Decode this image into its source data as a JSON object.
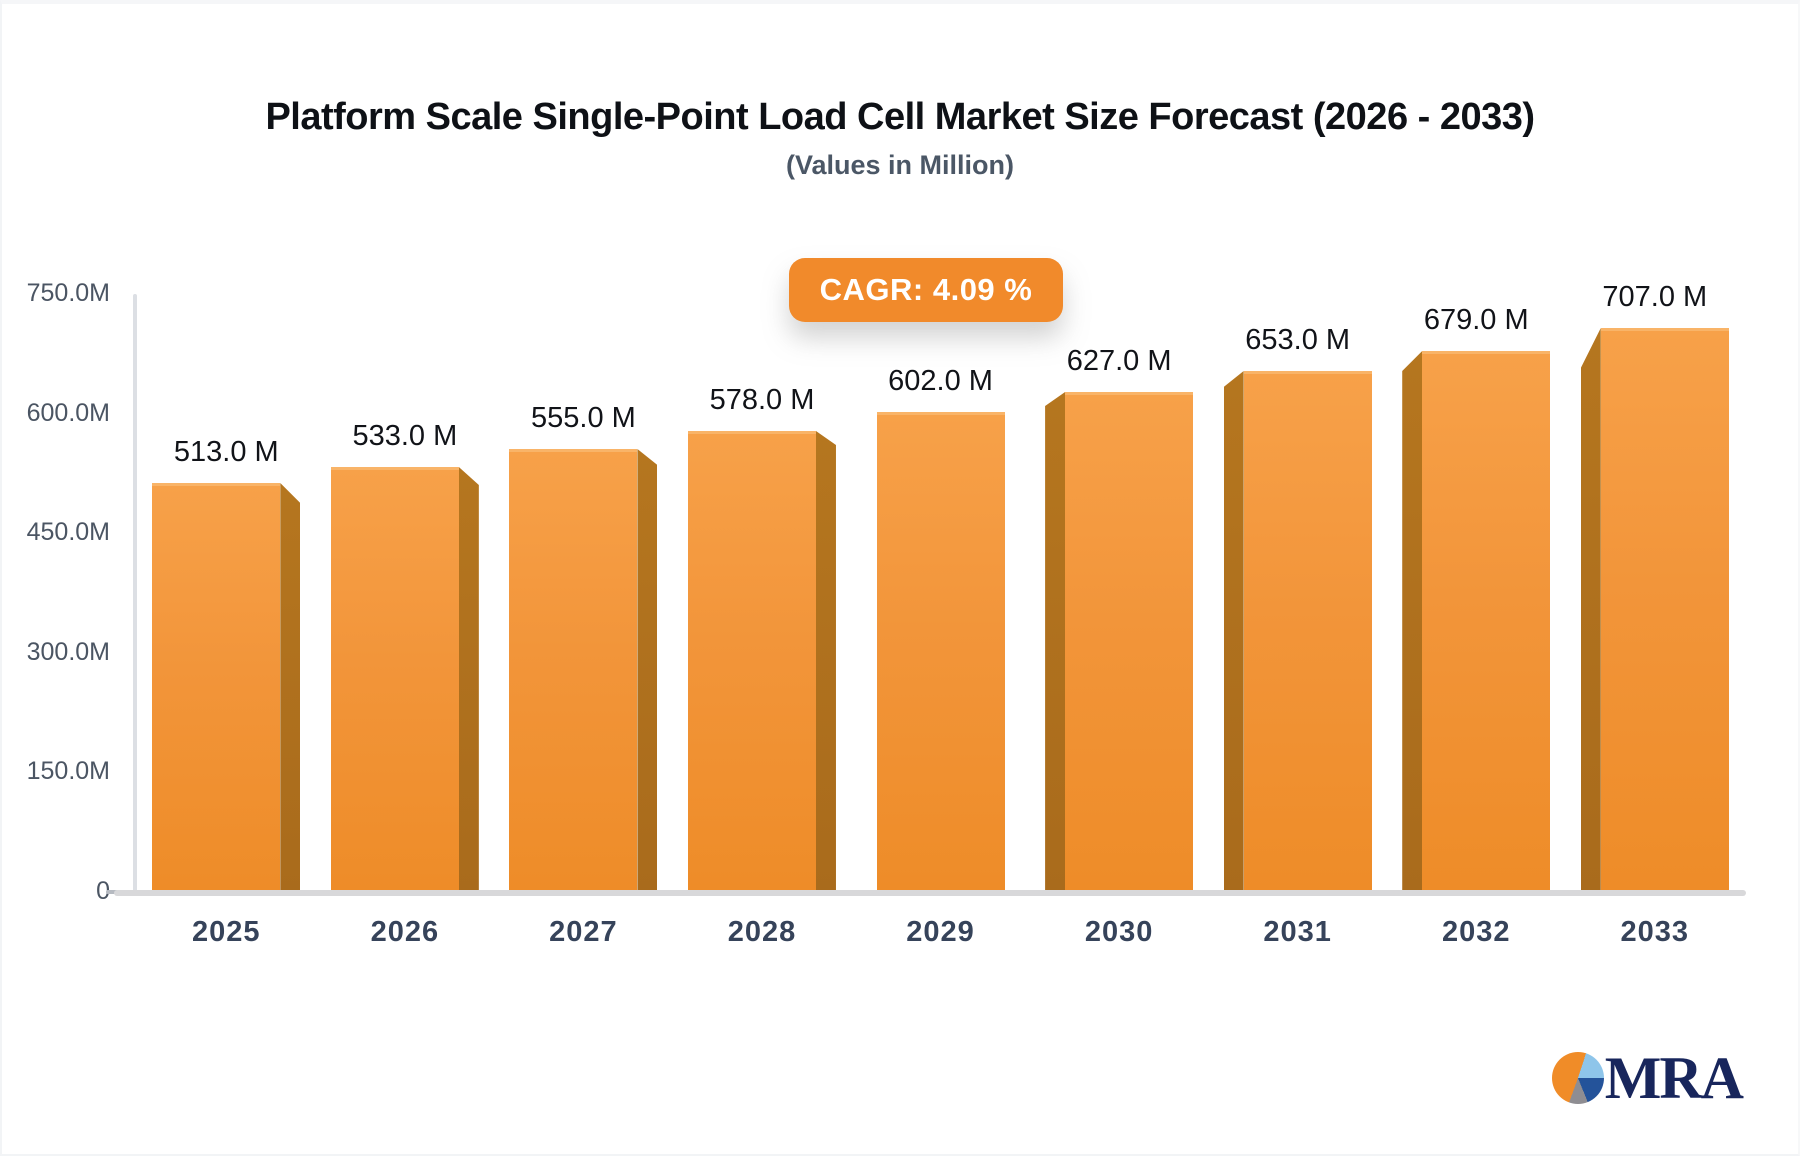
{
  "page": {
    "title": "Platform Scale Single-Point Load Cell Market Size Forecast (2026 - 2033)",
    "subtitle": "(Values in Million)"
  },
  "cagr_badge": {
    "label": "CAGR: 4.09 %"
  },
  "chart_data": {
    "type": "bar",
    "title": "Platform Scale Single-Point Load Cell Market Size Forecast (2026 - 2033)",
    "subtitle": "(Values in Million)",
    "categories": [
      "2025",
      "2026",
      "2027",
      "2028",
      "2029",
      "2030",
      "2031",
      "2032",
      "2033"
    ],
    "values": [
      513,
      533,
      555,
      578,
      602,
      627,
      653,
      679,
      707
    ],
    "bar_labels": [
      "513.0 M",
      "533.0 M",
      "555.0 M",
      "578.0 M",
      "602.0 M",
      "627.0 M",
      "653.0 M",
      "679.0 M",
      "707.0 M"
    ],
    "unit": "Million",
    "ylim": [
      0,
      750
    ],
    "y_ticks": [
      {
        "label": "750.0M",
        "value": 750
      },
      {
        "label": "600.0M",
        "value": 600
      },
      {
        "label": "450.0M",
        "value": 450
      },
      {
        "label": "300.0M",
        "value": 300
      },
      {
        "label": "150.0M",
        "value": 150
      },
      {
        "label": "0",
        "value": 0
      }
    ],
    "grid": false,
    "legend": false,
    "annotation": "CAGR: 4.09 %",
    "bar_color": "#f2953a",
    "bar_side_color": "#b5761f"
  },
  "logo": {
    "text": "MRA"
  },
  "colors": {
    "accent_orange": "#f18a2b",
    "axis_gray": "#d8d8da",
    "value_label": "#111318",
    "tick_label": "#4b5563",
    "year_label": "#36435a",
    "logo_navy": "#18265c"
  }
}
